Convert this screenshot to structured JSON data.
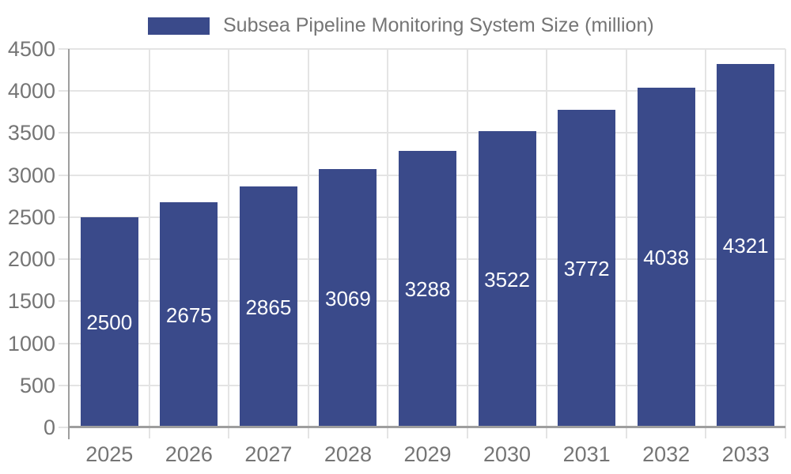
{
  "chart_data": {
    "type": "bar",
    "title": "Subsea Pipeline Monitoring System Size (million)",
    "categories": [
      "2025",
      "2026",
      "2027",
      "2028",
      "2029",
      "2030",
      "2031",
      "2032",
      "2033"
    ],
    "values": [
      2500,
      2675,
      2865,
      3069,
      3288,
      3522,
      3772,
      4038,
      4321
    ],
    "xlabel": "",
    "ylabel": "",
    "ylim": [
      0,
      4500
    ],
    "yticks": [
      0,
      500,
      1000,
      1500,
      2000,
      2500,
      3000,
      3500,
      4000,
      4500
    ],
    "grid": true,
    "legend_position": "top-center",
    "value_label_position": "inside-center"
  },
  "legend": {
    "label": "Subsea Pipeline Monitoring System Size (million)"
  },
  "colors": {
    "bar": "#3A4A8A",
    "axis_line": "#9E9E9E",
    "grid_line": "#E4E4E4",
    "tick_label": "#757575",
    "legend_text": "#757575",
    "value_label": "#FFFFFF",
    "background": "#FFFFFF"
  }
}
